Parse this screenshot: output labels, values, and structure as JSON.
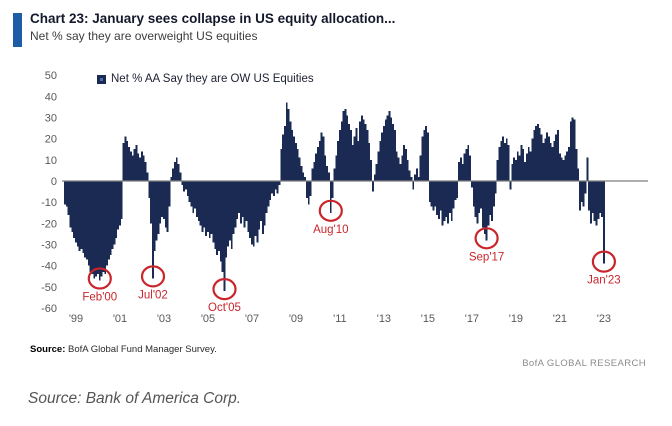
{
  "header": {
    "title": "Chart 23: January sees collapse in US equity allocation...",
    "subtitle": "Net % say they are overweight US equities"
  },
  "legend": {
    "label": "Net % AA Say they are OW US Equities"
  },
  "chart_data": {
    "type": "bar",
    "title": "Chart 23: January sees collapse in US equity allocation...",
    "ylabel": "Net % say they are overweight US equities",
    "series_name": "Net % AA Say they are OW US Equities",
    "frequency": "monthly",
    "start_month": "Jul 1998",
    "end_month": "Jan 2023",
    "grid": false,
    "legend_position": "top-center",
    "ylim": [
      -60,
      50
    ],
    "y_ticks": [
      50,
      40,
      30,
      20,
      10,
      0,
      -10,
      -20,
      -30,
      -40,
      -50,
      -60
    ],
    "x_ticks": [
      {
        "label": "'99",
        "month_index": 6
      },
      {
        "label": "'01",
        "month_index": 30
      },
      {
        "label": "'03",
        "month_index": 54
      },
      {
        "label": "'05",
        "month_index": 78
      },
      {
        "label": "'07",
        "month_index": 102
      },
      {
        "label": "'09",
        "month_index": 126
      },
      {
        "label": "'11",
        "month_index": 150
      },
      {
        "label": "'13",
        "month_index": 174
      },
      {
        "label": "'15",
        "month_index": 198
      },
      {
        "label": "'17",
        "month_index": 222
      },
      {
        "label": "'19",
        "month_index": 246
      },
      {
        "label": "'21",
        "month_index": 270
      },
      {
        "label": "'23",
        "month_index": 294
      }
    ],
    "values": [
      -11,
      -12,
      -16,
      -22,
      -24,
      -27,
      -29,
      -31,
      -33,
      -32,
      -34,
      -36,
      -37,
      -40,
      -43,
      -44,
      -46,
      -45,
      -44,
      -47,
      -45,
      -43,
      -44,
      -40,
      -37,
      -35,
      -32,
      -30,
      -27,
      -23,
      -21,
      -18,
      18,
      21,
      19,
      16,
      14,
      12,
      15,
      17,
      13,
      11,
      14,
      12,
      9,
      4,
      -8,
      -20,
      -46,
      -33,
      -28,
      -25,
      -20,
      -17,
      -18,
      -22,
      -24,
      -12,
      2,
      6,
      9,
      11,
      8,
      4,
      -2,
      -5,
      -4,
      -7,
      -10,
      -12,
      -15,
      -13,
      -17,
      -19,
      -21,
      -24,
      -22,
      -26,
      -24,
      -27,
      -25,
      -29,
      -32,
      -35,
      -33,
      -38,
      -43,
      -52,
      -36,
      -31,
      -28,
      -32,
      -25,
      -22,
      -18,
      -15,
      -20,
      -17,
      -22,
      -19,
      -24,
      -27,
      -30,
      -31,
      -26,
      -29,
      -23,
      -19,
      -25,
      -21,
      -15,
      -12,
      -9,
      -6,
      -7,
      -4,
      -6,
      -2,
      15,
      22,
      26,
      37,
      34,
      28,
      24,
      21,
      18,
      15,
      11,
      7,
      4,
      2,
      -8,
      -11,
      -7,
      6,
      9,
      13,
      16,
      19,
      23,
      21,
      12,
      7,
      4,
      -15,
      -8,
      6,
      12,
      19,
      24,
      28,
      33,
      34,
      31,
      27,
      24,
      17,
      21,
      25,
      19,
      28,
      31,
      29,
      27,
      24,
      18,
      10,
      -5,
      3,
      8,
      14,
      19,
      23,
      26,
      29,
      31,
      33,
      30,
      27,
      24,
      14,
      11,
      8,
      12,
      17,
      15,
      10,
      5,
      2,
      -4,
      3,
      6,
      2,
      12,
      21,
      24,
      26,
      23,
      -10,
      -12,
      -14,
      -12,
      -16,
      -18,
      -14,
      -21,
      -19,
      -17,
      -20,
      -15,
      -19,
      -13,
      -9,
      -8,
      9,
      11,
      8,
      13,
      15,
      17,
      12,
      -3,
      -12,
      -17,
      -20,
      -15,
      -13,
      -22,
      -25,
      -28,
      -21,
      -16,
      -19,
      -12,
      -6,
      10,
      16,
      19,
      21,
      18,
      20,
      17,
      -4,
      8,
      11,
      10,
      14,
      12,
      17,
      15,
      9,
      13,
      16,
      14,
      20,
      24,
      26,
      27,
      25,
      22,
      18,
      20,
      23,
      21,
      18,
      16,
      19,
      22,
      24,
      13,
      11,
      10,
      12,
      14,
      16,
      28,
      30,
      29,
      15,
      6,
      -14,
      -10,
      -12,
      -6,
      11,
      -14,
      -20,
      -15,
      -19,
      -21,
      -18,
      -15,
      -17,
      -39
    ],
    "annotations": [
      {
        "label": "Feb'00",
        "month_index": 19,
        "value": -47
      },
      {
        "label": "Jul'02",
        "month_index": 48,
        "value": -46
      },
      {
        "label": "Oct'05",
        "month_index": 87,
        "value": -52
      },
      {
        "label": "Aug'10",
        "month_index": 145,
        "value": -15
      },
      {
        "label": "Sep'17",
        "month_index": 230,
        "value": -28
      },
      {
        "label": "Jan'23",
        "month_index": 294,
        "value": -39
      }
    ]
  },
  "footer": {
    "source_label": "Source:",
    "source_text": " BofA Global Fund Manager Survey.",
    "brand": "BofA GLOBAL RESEARCH"
  },
  "caption": "Source: Bank of America Corp.",
  "colors": {
    "bar": "#1a2a52",
    "accent_bar": "#1f5ca8",
    "annotation_red": "#c9252b",
    "axis_text": "#595959",
    "zero_line": "#7f7f7f",
    "title_text": "#14182b",
    "subtitle_text": "#3d3d3d",
    "brand_text": "#8c8c8c",
    "caption_text": "#555555"
  }
}
